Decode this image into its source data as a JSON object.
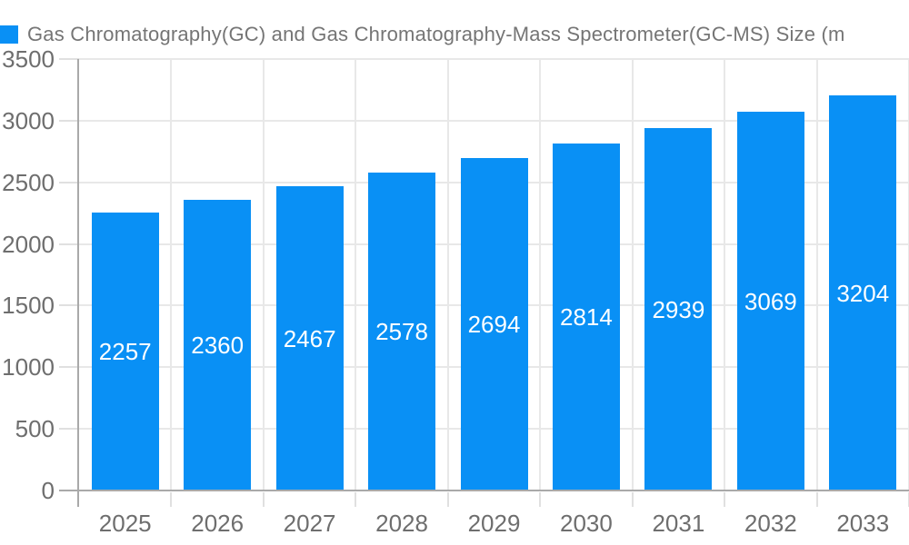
{
  "legend": {
    "position": "top-left",
    "swatch_shape": "square"
  },
  "chart_data": {
    "type": "bar",
    "title": "Gas Chromatography(GC) and Gas Chromatography-Mass Spectrometer(GC-MS) Size (m",
    "series_name": "Gas Chromatography(GC) and Gas Chromatography-Mass Spectrometer(GC-MS) Size (m",
    "categories": [
      "2025",
      "2026",
      "2027",
      "2028",
      "2029",
      "2030",
      "2031",
      "2032",
      "2033"
    ],
    "values": [
      2257,
      2360,
      2467,
      2578,
      2694,
      2814,
      2939,
      3069,
      3204
    ],
    "value_labels_visible": true,
    "value_label_position": "inside-center",
    "xlabel": "",
    "ylabel": "",
    "ylim": [
      0,
      3500
    ],
    "ytick_step": 500,
    "ytick_labels": [
      "0",
      "500",
      "1000",
      "1500",
      "2000",
      "2500",
      "3000",
      "3500"
    ],
    "grid": true,
    "legend_position": "top-left"
  },
  "colors": {
    "bar": "#0990f5",
    "axis_line": "#a9a9a9",
    "gridline": "#e8e8e8",
    "tick": "#e0e0e0",
    "axis_text": "#6e6e6e",
    "title_text": "#757575",
    "value_label_text": "#ffffff",
    "background": "#ffffff"
  }
}
